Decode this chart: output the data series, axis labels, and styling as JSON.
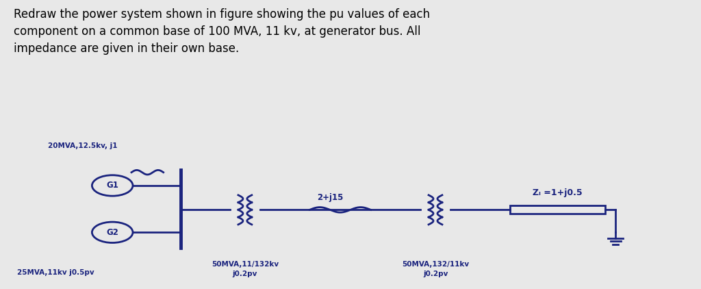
{
  "title_text": "Redraw the power system shown in figure showing the pu values of each\ncomponent on a common base of 100 MVA, 11 kv, at generator bus. All\nimpedance are given in their own base.",
  "bg_color": "#8fa3c0",
  "title_bg": "#e8e8e8",
  "text_color": "#1a237e",
  "line_color": "#1a237e",
  "g1_label": "G1",
  "g2_label": "G2",
  "g1_info": "20MVA,12.5kv, j1",
  "g2_info": "25MVA,11kv j0.5pv",
  "t1_info": "50MVA,11/132kv\nj0.2pv",
  "t2_info": "50MVA,132/11kv\nj0.2pv",
  "line_info": "2+j15",
  "zl_label": "Zₗ =1+j0.5"
}
